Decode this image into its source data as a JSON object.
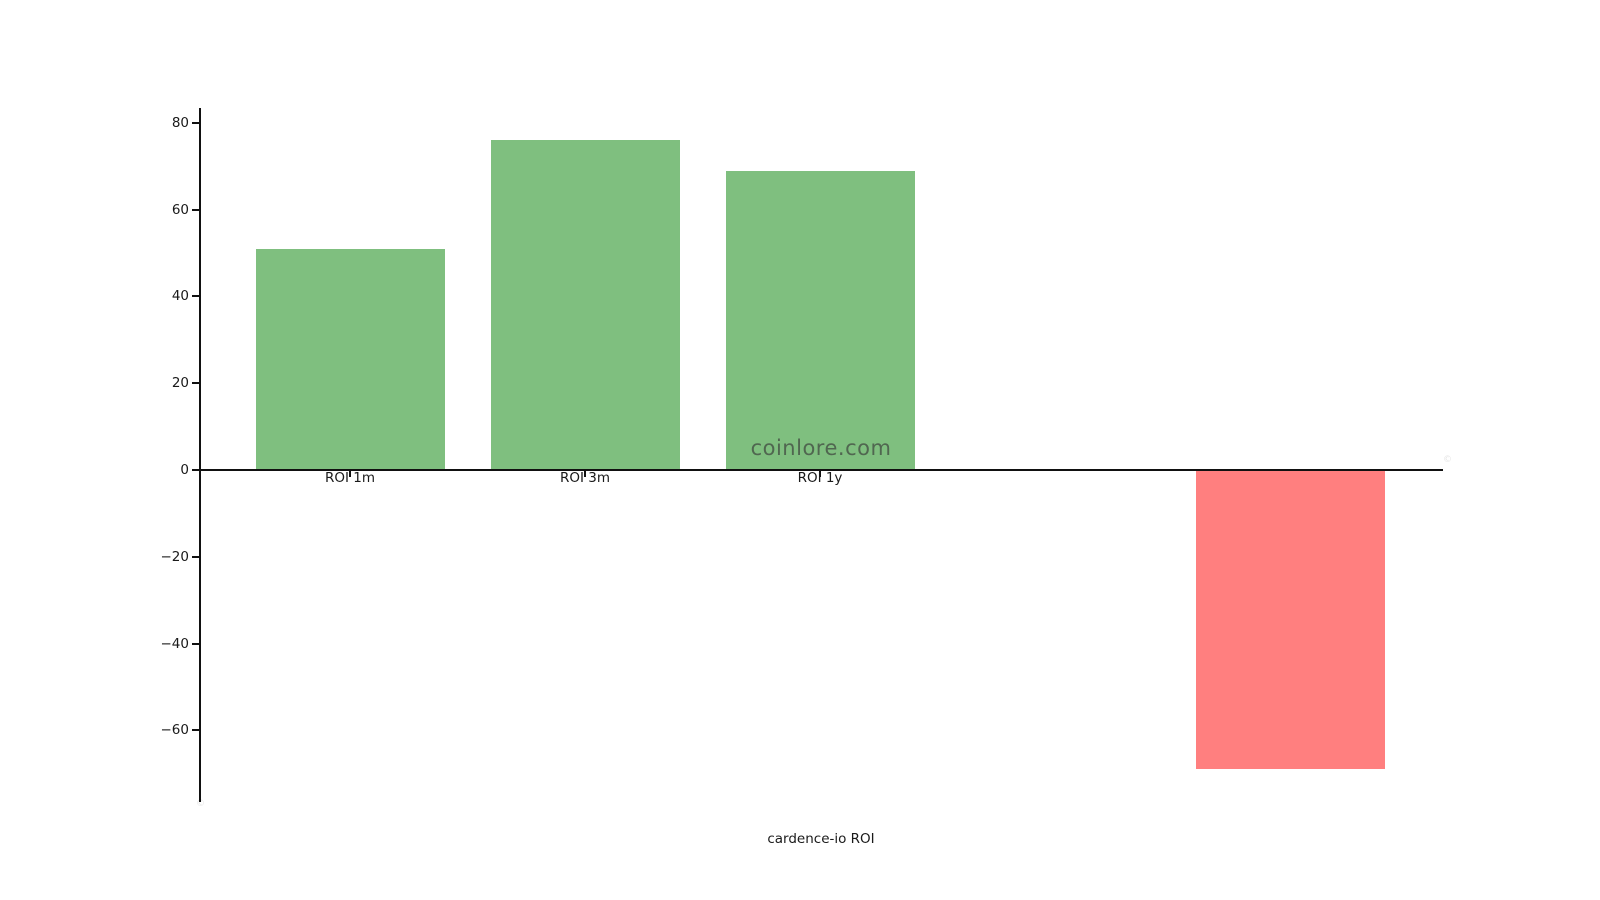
{
  "chart_data": {
    "type": "bar",
    "title": "",
    "xlabel": "cardence-io ROI",
    "ylabel": "",
    "watermark": "coinlore.com",
    "categories": [
      "ROI 1m",
      "ROI 3m",
      "ROI 1y",
      "",
      ""
    ],
    "values": [
      51,
      76,
      69,
      0,
      -69
    ],
    "yticks": [
      80,
      60,
      40,
      20,
      0,
      -20,
      -40,
      -60
    ],
    "ytick_labels": [
      "80",
      "60",
      "40",
      "20",
      "0",
      "−20",
      "−40",
      "−60"
    ],
    "ylim": [
      -75.7,
      83.4
    ],
    "grid": false,
    "legend": null,
    "colors": {
      "positive_bar": "#7FBF7F",
      "negative_bar": "#FF7F7F",
      "axis": "#111111",
      "text": "#1a1a1a",
      "watermark_text": "#373737"
    }
  },
  "artifact_glyph": "©"
}
